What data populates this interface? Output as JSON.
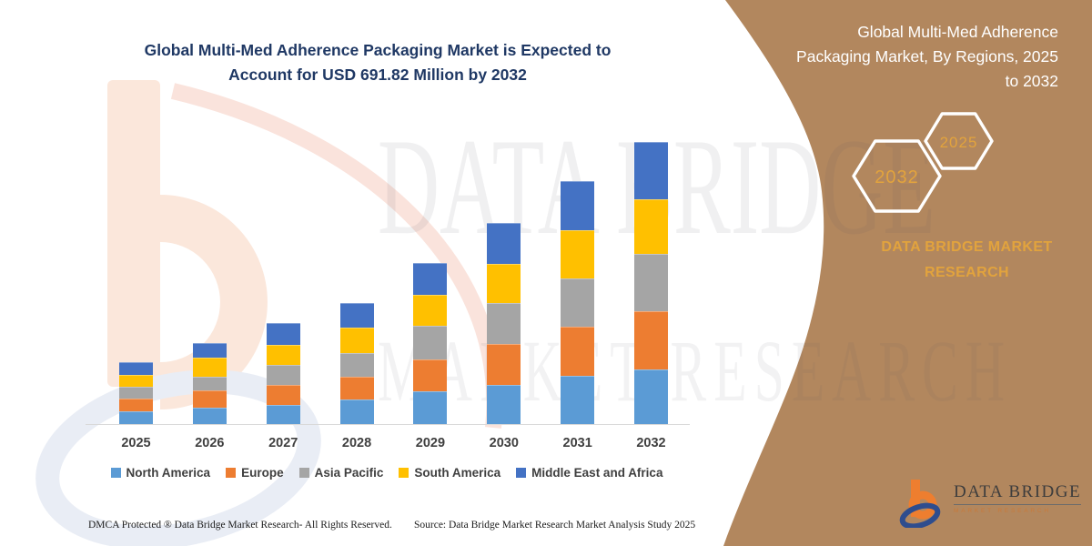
{
  "colors": {
    "panel_brown": "#B2875E",
    "gold": "#E2A33D",
    "title_navy": "#1F3864",
    "axis_text": "#3F3F3F",
    "logo_orange": "#EE7E2F",
    "logo_blue": "#2E4D8E"
  },
  "main_title": {
    "line1": "Global Multi-Med Adherence Packaging Market is Expected to",
    "line2": "Account for USD 691.82 Million by 2032"
  },
  "right_panel": {
    "title_lines": [
      "Global Multi-Med Adherence",
      "Packaging Market, By Regions, 2025",
      "to 2032"
    ],
    "hexagons": [
      {
        "year": "2032"
      },
      {
        "year": "2025"
      }
    ],
    "brand_lines": [
      "DATA BRIDGE MARKET",
      "RESEARCH"
    ]
  },
  "watermark": {
    "line1": "DATA BRIDGE",
    "line2": "MARKET RESEARCH"
  },
  "footer": {
    "dmca": "DMCA Protected ® Data Bridge Market Research-  All Rights Reserved.",
    "source": "Source: Data Bridge Market Research  Market Analysis Study 2025"
  },
  "logo": {
    "name": "DATA BRIDGE",
    "tagline": "MARKET RESEARCH"
  },
  "chart_data": {
    "type": "bar",
    "stacked": true,
    "title": "Global Multi-Med Adherence Packaging Market is Expected to Account for USD 691.82 Million by 2032",
    "subtitle": "Global Multi-Med Adherence Packaging Market, By Regions, 2025 to 2032",
    "unit": "USD Million",
    "categories": [
      "2025",
      "2026",
      "2027",
      "2028",
      "2029",
      "2030",
      "2031",
      "2032"
    ],
    "series": [
      {
        "name": "North America",
        "color": "#5B9BD5",
        "values": [
          31,
          41,
          47,
          60,
          80,
          97,
          119,
          135
        ]
      },
      {
        "name": "Europe",
        "color": "#ED7D31",
        "values": [
          32,
          42,
          48,
          57,
          79,
          100,
          119,
          141
        ]
      },
      {
        "name": "Asia Pacific",
        "color": "#A5A5A5",
        "values": [
          28,
          34,
          50,
          58,
          82,
          100,
          119,
          141
        ]
      },
      {
        "name": "South America",
        "color": "#FFC000",
        "values": [
          30,
          46,
          50,
          61,
          76,
          97,
          119,
          135
        ]
      },
      {
        "name": "Middle East and Africa",
        "color": "#4472C4",
        "values": [
          30,
          36,
          52,
          62,
          78,
          100,
          119,
          139.82
        ]
      }
    ],
    "totals": [
      151,
      199,
      247,
      298,
      395,
      494,
      595,
      691.82
    ],
    "ylim": [
      0,
      700
    ],
    "y_axis_visible": false,
    "grid": false,
    "legend_position": "bottom"
  }
}
